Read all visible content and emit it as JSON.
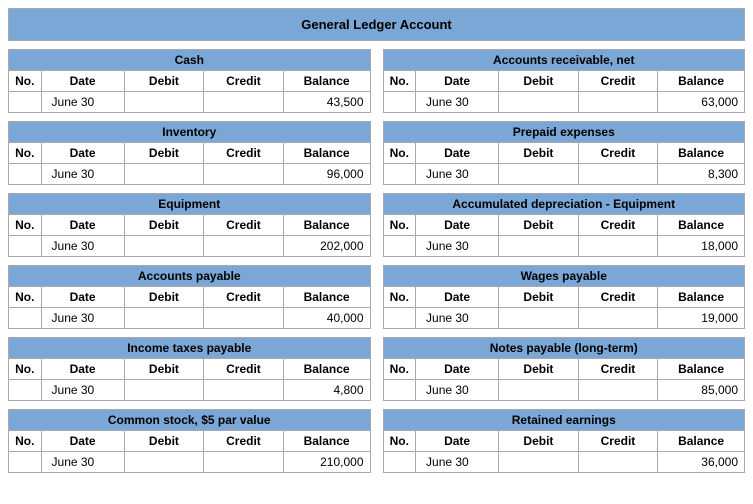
{
  "page_title": "General Ledger Account",
  "header_bg": "#7ba7d7",
  "border_color": "#a9a9a9",
  "column_headers": {
    "no": "No.",
    "date": "Date",
    "debit": "Debit",
    "credit": "Credit",
    "balance": "Balance"
  },
  "accounts": [
    [
      {
        "name": "Cash",
        "rows": [
          {
            "no": "",
            "date": "June 30",
            "debit": "",
            "credit": "",
            "balance": "43,500"
          }
        ]
      },
      {
        "name": "Accounts receivable, net",
        "rows": [
          {
            "no": "",
            "date": "June 30",
            "debit": "",
            "credit": "",
            "balance": "63,000"
          }
        ]
      }
    ],
    [
      {
        "name": "Inventory",
        "rows": [
          {
            "no": "",
            "date": "June 30",
            "debit": "",
            "credit": "",
            "balance": "96,000"
          }
        ]
      },
      {
        "name": "Prepaid expenses",
        "rows": [
          {
            "no": "",
            "date": "June 30",
            "debit": "",
            "credit": "",
            "balance": "8,300"
          }
        ]
      }
    ],
    [
      {
        "name": "Equipment",
        "rows": [
          {
            "no": "",
            "date": "June 30",
            "debit": "",
            "credit": "",
            "balance": "202,000"
          }
        ]
      },
      {
        "name": "Accumulated depreciation - Equipment",
        "rows": [
          {
            "no": "",
            "date": "June 30",
            "debit": "",
            "credit": "",
            "balance": "18,000"
          }
        ]
      }
    ],
    [
      {
        "name": "Accounts payable",
        "rows": [
          {
            "no": "",
            "date": "June 30",
            "debit": "",
            "credit": "",
            "balance": "40,000"
          }
        ]
      },
      {
        "name": "Wages payable",
        "rows": [
          {
            "no": "",
            "date": "June 30",
            "debit": "",
            "credit": "",
            "balance": "19,000"
          }
        ]
      }
    ],
    [
      {
        "name": "Income taxes payable",
        "rows": [
          {
            "no": "",
            "date": "June 30",
            "debit": "",
            "credit": "",
            "balance": "4,800"
          }
        ]
      },
      {
        "name": "Notes payable (long-term)",
        "rows": [
          {
            "no": "",
            "date": "June 30",
            "debit": "",
            "credit": "",
            "balance": "85,000"
          }
        ]
      }
    ],
    [
      {
        "name": "Common stock, $5 par value",
        "rows": [
          {
            "no": "",
            "date": "June 30",
            "debit": "",
            "credit": "",
            "balance": "210,000"
          }
        ]
      },
      {
        "name": "Retained earnings",
        "rows": [
          {
            "no": "",
            "date": "June 30",
            "debit": "",
            "credit": "",
            "balance": "36,000"
          }
        ]
      }
    ]
  ]
}
